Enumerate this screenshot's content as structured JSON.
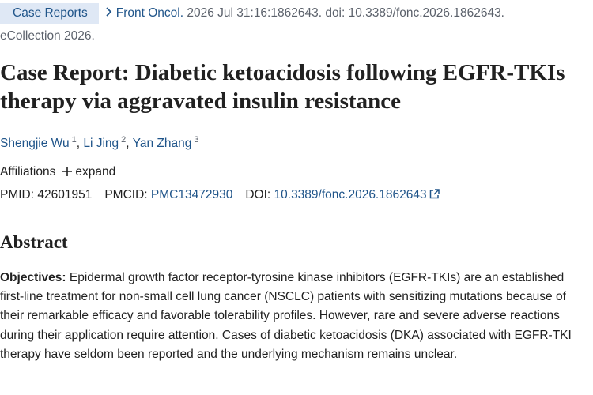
{
  "header": {
    "tag": "Case Reports",
    "journal": "Front Oncol.",
    "citation": "2026 Jul 31:16:1862643. doi: 10.3389/fonc.2026.1862643. eCollection 2026."
  },
  "title": "Case Report: Diabetic ketoacidosis following EGFR-TKIs therapy via aggravated insulin resistance",
  "authors": [
    {
      "name": "Shengjie Wu",
      "affiliation": "1"
    },
    {
      "name": "Li Jing",
      "affiliation": "2"
    },
    {
      "name": "Yan Zhang",
      "affiliation": "3"
    }
  ],
  "affiliations": {
    "label": "Affiliations",
    "toggle": "expand"
  },
  "identifiers": [
    {
      "label": "PMID:",
      "value": "42601951"
    },
    {
      "label": "PMCID:",
      "value": "PMC13472930"
    },
    {
      "label": "DOI:",
      "value": "10.3389/fonc.2026.1862643"
    }
  ],
  "abstract": {
    "heading": "Abstract",
    "sections": [
      {
        "label": "Objectives:",
        "text": "Epidermal growth factor receptor-tyrosine kinase inhibitors (EGFR-TKIs) are an established first-line treatment for non-small cell lung cancer (NSCLC) patients with sensitizing mutations because of their remarkable efficacy and favorable tolerability profiles. However, rare and severe adverse reactions during their application require attention. Cases of diabetic ketoacidosis (DKA) associated with EGFR-TKI therapy have seldom been reported and the underlying mechanism remains unclear."
      }
    ]
  }
}
